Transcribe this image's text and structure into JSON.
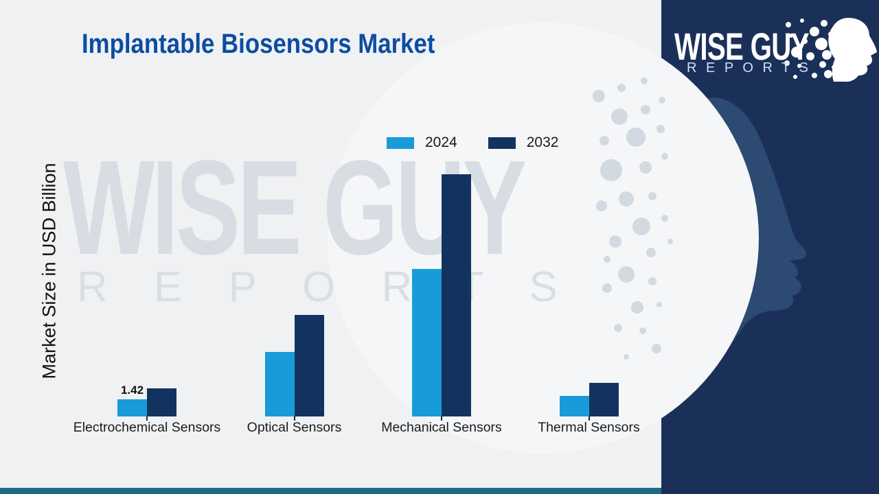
{
  "title": "Implantable Biosensors Market",
  "watermark": {
    "line1": "WISE GUY",
    "line2": "R E P O R T S"
  },
  "brand": {
    "line1": "WISE GUY",
    "line2": "R E P O R T S"
  },
  "colors": {
    "title": "#0C4DA2",
    "bar_2024": "#189BD8",
    "bar_2032": "#12335F",
    "brand_panel": "#1B3059",
    "bottom_strip": "#1D6B85",
    "background": "#F0F1F3",
    "watermark_text": "#D8DCE3"
  },
  "chart_data": {
    "type": "bar",
    "title": "Implantable Biosensors Market",
    "xlabel": "",
    "ylabel": "Market Size in USD Billion",
    "categories": [
      "Electrochemical Sensors",
      "Optical Sensors",
      "Mechanical Sensors",
      "Thermal Sensors"
    ],
    "series": [
      {
        "name": "2024",
        "color": "#189BD8",
        "values": [
          1.42,
          5.3,
          12.2,
          1.7
        ]
      },
      {
        "name": "2032",
        "color": "#12335F",
        "values": [
          2.3,
          8.4,
          20.0,
          2.8
        ]
      }
    ],
    "ylim": [
      0,
      20
    ],
    "grid": false,
    "legend_position": "top-center",
    "annotations": [
      {
        "series": "2024",
        "category": "Electrochemical Sensors",
        "text": "1.42"
      }
    ]
  }
}
